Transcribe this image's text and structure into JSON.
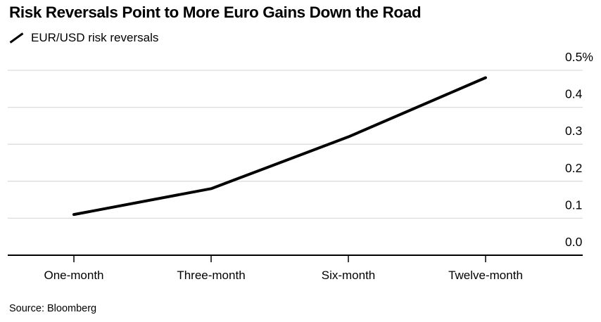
{
  "header": {
    "title": "Risk Reversals Point to More Euro Gains Down the Road"
  },
  "legend": {
    "marker_icon": "diagonal-line-icon",
    "label": "EUR/USD risk reversals"
  },
  "chart_data": {
    "type": "line",
    "title": "EUR/USD risk reversals",
    "categories": [
      "One-month",
      "Three-month",
      "Six-month",
      "Twelve-month"
    ],
    "values": [
      0.11,
      0.18,
      0.32,
      0.48
    ],
    "unit": "%",
    "xlabel": "",
    "ylabel": "",
    "ylim": [
      0,
      0.5
    ],
    "yticks": [
      {
        "value": 0.0,
        "label": "0.0"
      },
      {
        "value": 0.1,
        "label": "0.1"
      },
      {
        "value": 0.2,
        "label": "0.2"
      },
      {
        "value": 0.3,
        "label": "0.3"
      },
      {
        "value": 0.4,
        "label": "0.4"
      },
      {
        "value": 0.5,
        "label": "0.5%"
      }
    ],
    "grid": true,
    "legend_position": "top-left",
    "line_color": "#000000",
    "grid_color": "#dcdcdc",
    "axis_color": "#000000",
    "tick_label_color": "#000000",
    "background": "#ffffff"
  },
  "footer": {
    "source": "Source: Bloomberg"
  }
}
